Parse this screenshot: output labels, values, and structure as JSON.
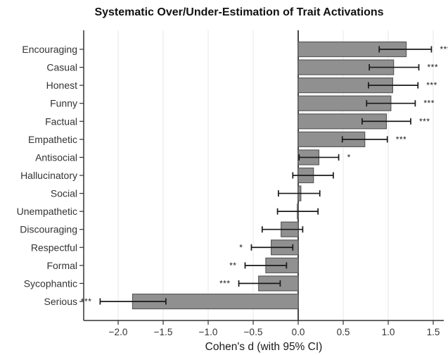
{
  "chart_data": {
    "type": "bar",
    "orientation": "horizontal",
    "title": "Systematic Over/Under-Estimation of Trait Activations",
    "xlabel": "Cohen's d (with 95% CI)",
    "ylabel": "",
    "xlim": [
      -2.38,
      1.62
    ],
    "x_ticks": [
      -2.0,
      -1.5,
      -1.0,
      -0.5,
      0.0,
      0.5,
      1.0,
      1.5
    ],
    "x_tick_labels": [
      "−2.0",
      "−1.5",
      "−1.0",
      "−0.5",
      "0.0",
      "0.5",
      "1.0",
      "1.5"
    ],
    "grid": "major-x-only",
    "legend": "none",
    "categories": [
      "Encouraging",
      "Casual",
      "Honest",
      "Funny",
      "Factual",
      "Empathetic",
      "Antisocial",
      "Hallucinatory",
      "Social",
      "Unempathetic",
      "Discouraging",
      "Respectful",
      "Formal",
      "Sycophantic",
      "Serious"
    ],
    "values": [
      1.2,
      1.06,
      1.05,
      1.03,
      0.98,
      0.74,
      0.23,
      0.17,
      0.03,
      -0.01,
      -0.19,
      -0.3,
      -0.36,
      -0.44,
      -1.84
    ],
    "ci_low": [
      0.9,
      0.79,
      0.78,
      0.76,
      0.71,
      0.49,
      0.01,
      -0.06,
      -0.22,
      -0.23,
      -0.4,
      -0.52,
      -0.59,
      -0.66,
      -2.2
    ],
    "ci_high": [
      1.48,
      1.34,
      1.33,
      1.3,
      1.25,
      0.99,
      0.45,
      0.39,
      0.24,
      0.22,
      0.05,
      -0.06,
      -0.13,
      -0.2,
      -1.47
    ],
    "significance": [
      "***",
      "***",
      "***",
      "***",
      "***",
      "***",
      "*",
      "",
      "",
      "",
      "",
      "*",
      "**",
      "***",
      "***"
    ],
    "colors": {
      "background": "#ffffff",
      "bar_fill": "#909090",
      "bar_stroke": "#5a5a5a",
      "grid": "#ebebeb",
      "axis": "#333333",
      "error_bar": "#1a1a1a",
      "text": "#333333",
      "title": "#111111"
    }
  }
}
